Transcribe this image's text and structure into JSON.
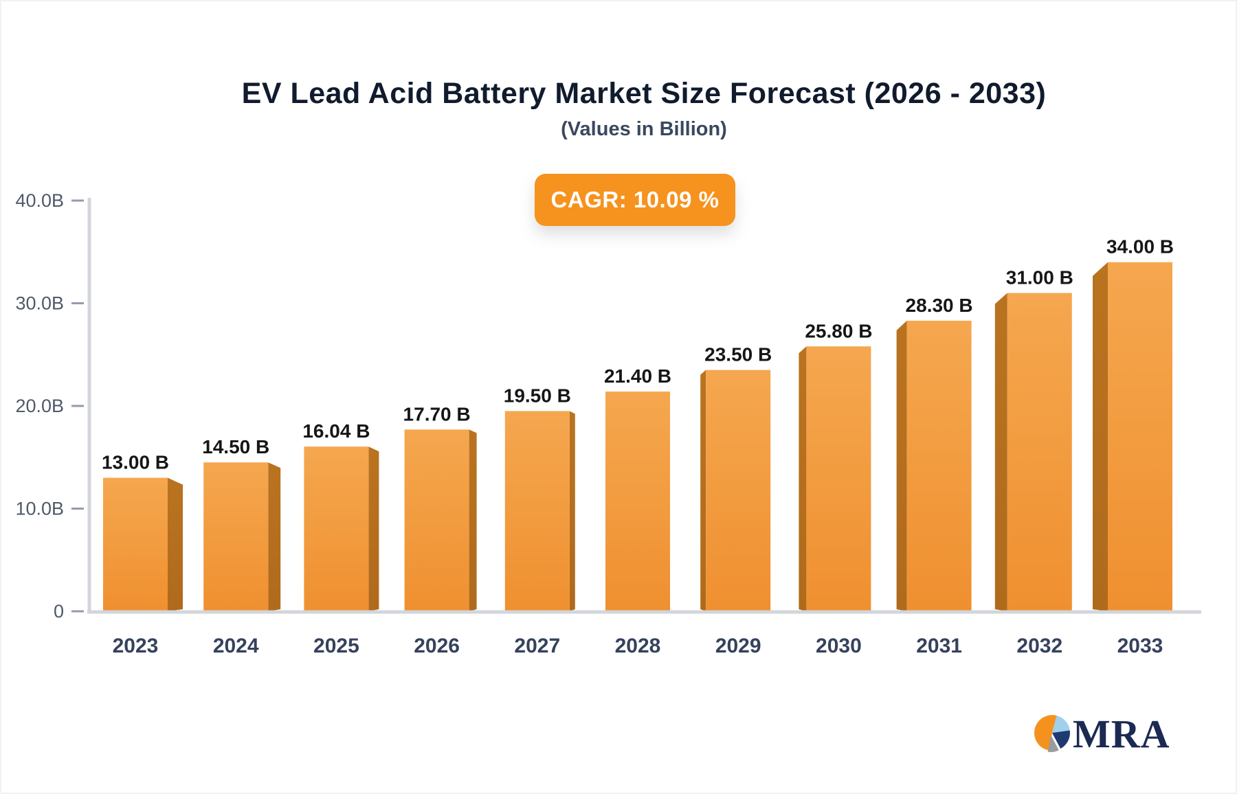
{
  "title": "EV Lead Acid Battery Market Size Forecast (2026 - 2033)",
  "subtitle": "(Values in Billion)",
  "cagr_label": "CAGR: 10.09 %",
  "logo": {
    "text": "MRA"
  },
  "colors": {
    "bar_face_top": "#f5a74f",
    "bar_face_bottom": "#ef9030",
    "bar_side": "#b06a1c",
    "badge_orange": "#f6921e",
    "axis_line": "#d2d5da",
    "tick_dash": "#949cab",
    "axis_label": "#4f5a69",
    "year_label": "#35425c",
    "value_label": "#161616",
    "title_color": "#111b2e",
    "subtitle_color": "#3a4760",
    "logo_navy": "#1b2a52",
    "logo_blue": "#9fd0ec",
    "logo_gray": "#9b9b9b",
    "logo_orange": "#f5921e"
  },
  "chart_data": {
    "type": "bar",
    "title": "EV Lead Acid Battery Market Size Forecast (2026 - 2033)",
    "subtitle": "(Values in Billion)",
    "annotation": "CAGR: 10.09 %",
    "categories": [
      "2023",
      "2024",
      "2025",
      "2026",
      "2027",
      "2028",
      "2029",
      "2030",
      "2031",
      "2032",
      "2033"
    ],
    "values": [
      13.0,
      14.5,
      16.04,
      17.7,
      19.5,
      21.4,
      23.5,
      25.8,
      28.3,
      31.0,
      34.0
    ],
    "value_labels": [
      "13.00 B",
      "14.50 B",
      "16.04 B",
      "17.70 B",
      "19.50 B",
      "21.40 B",
      "23.50 B",
      "25.80 B",
      "28.30 B",
      "31.00 B",
      "34.00 B"
    ],
    "xlabel": "",
    "ylabel": "",
    "ylim": [
      0,
      40
    ],
    "y_ticks": [
      {
        "value": 40,
        "label": "40.0B"
      },
      {
        "value": 30,
        "label": "30.0B"
      },
      {
        "value": 20,
        "label": "20.0B"
      },
      {
        "value": 10,
        "label": "10.0B"
      },
      {
        "value": 0,
        "label": "0"
      }
    ],
    "grid": "off",
    "legend": "none",
    "style": "3d-perspective-columns, orange gradient"
  }
}
